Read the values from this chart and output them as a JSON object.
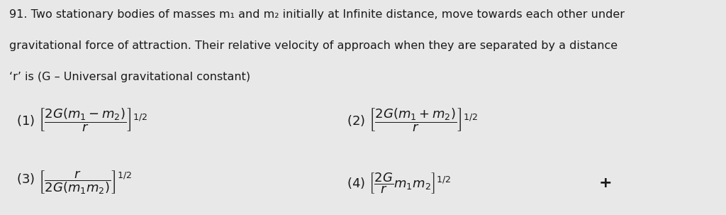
{
  "background_color": "#e8e8e8",
  "question_number": "91.",
  "question_text": "Two stationary bodies of masses m₁ and m₂ initially at Infinite distance, move towards each other under\ngravitational force of attraction. Their relative velocity of approach when they are separated by a distance\n‘r’ is (G – Universal gravitational constant)",
  "options": [
    {
      "label": "(1)",
      "formula": "$\\left[\\dfrac{2G(m_1 - m_2)}{r}\\right]^{1/2}$"
    },
    {
      "label": "(2)",
      "formula": "$\\left[\\dfrac{2G(m_1 + m_2)}{r}\\right]^{1/2}$"
    },
    {
      "label": "(3)",
      "formula": "$\\left[\\dfrac{r}{2G(m_1 m_2)}\\right]^{1/2}$"
    },
    {
      "label": "(4)",
      "formula": "$\\left[\\dfrac{2G}{r} m_1 m_2\\right]^{1/2}$"
    }
  ],
  "correct_marker": "+",
  "fig_width": 10.24,
  "fig_height": 3.03,
  "dpi": 100,
  "text_color": "#1a1a1a",
  "font_size_question": 11.5,
  "font_size_formula": 13,
  "font_size_label": 12
}
